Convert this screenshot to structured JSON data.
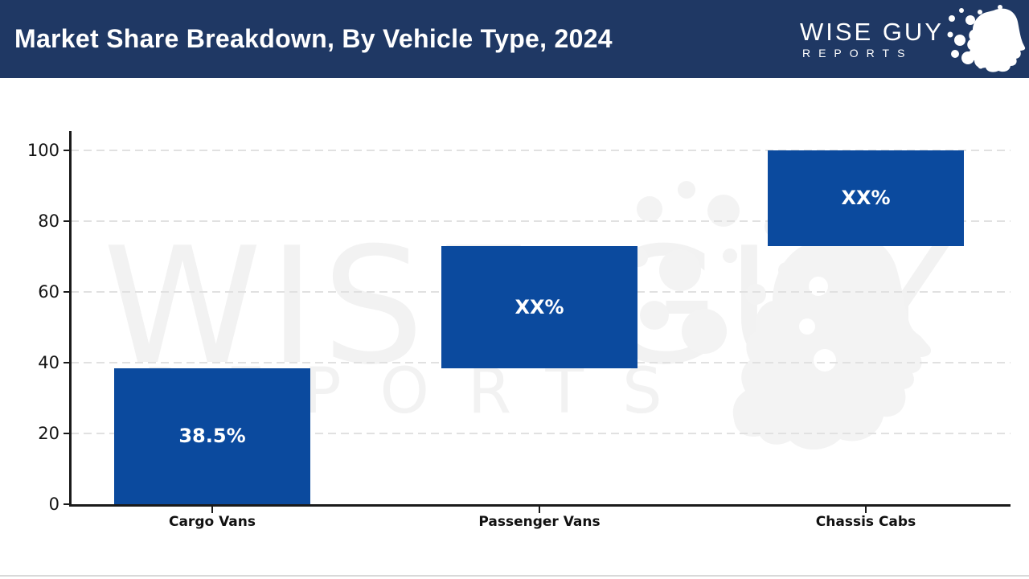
{
  "header": {
    "title": "Market Share Breakdown, By Vehicle Type, 2024",
    "logo": {
      "name_line": "WISE GUY",
      "sub_line": "REPORTS"
    }
  },
  "watermark": {
    "line1": "WISE GUY",
    "line2": "REPORTS"
  },
  "chart_data": {
    "type": "bar",
    "variant": "waterfall",
    "title": "Market Share Breakdown, By Vehicle Type, 2024",
    "categories": [
      "Cargo Vans",
      "Passenger Vans",
      "Chassis Cabs"
    ],
    "segments": [
      {
        "category": "Cargo Vans",
        "start": 0,
        "end": 38.5,
        "label": "38.5%"
      },
      {
        "category": "Passenger Vans",
        "start": 38.5,
        "end": 73,
        "label": "XX%"
      },
      {
        "category": "Chassis Cabs",
        "start": 73,
        "end": 100,
        "label": "XX%"
      }
    ],
    "xlabel": "",
    "ylabel": "",
    "ylim": [
      0,
      105
    ],
    "yticks": [
      0,
      20,
      40,
      60,
      80,
      100
    ],
    "grid": "horizontal-dashed",
    "legend": "none",
    "bar_color": "#0b4a9e",
    "value_label_color": "#ffffff"
  },
  "colors": {
    "header_bg": "#1f3864",
    "header_text": "#ffffff",
    "bar": "#0b4a9e",
    "axis": "#1a1a1a",
    "gridline": "#e1e1e1",
    "watermark": "#f2f2f2",
    "bottom_rule": "#d9d9d9"
  }
}
